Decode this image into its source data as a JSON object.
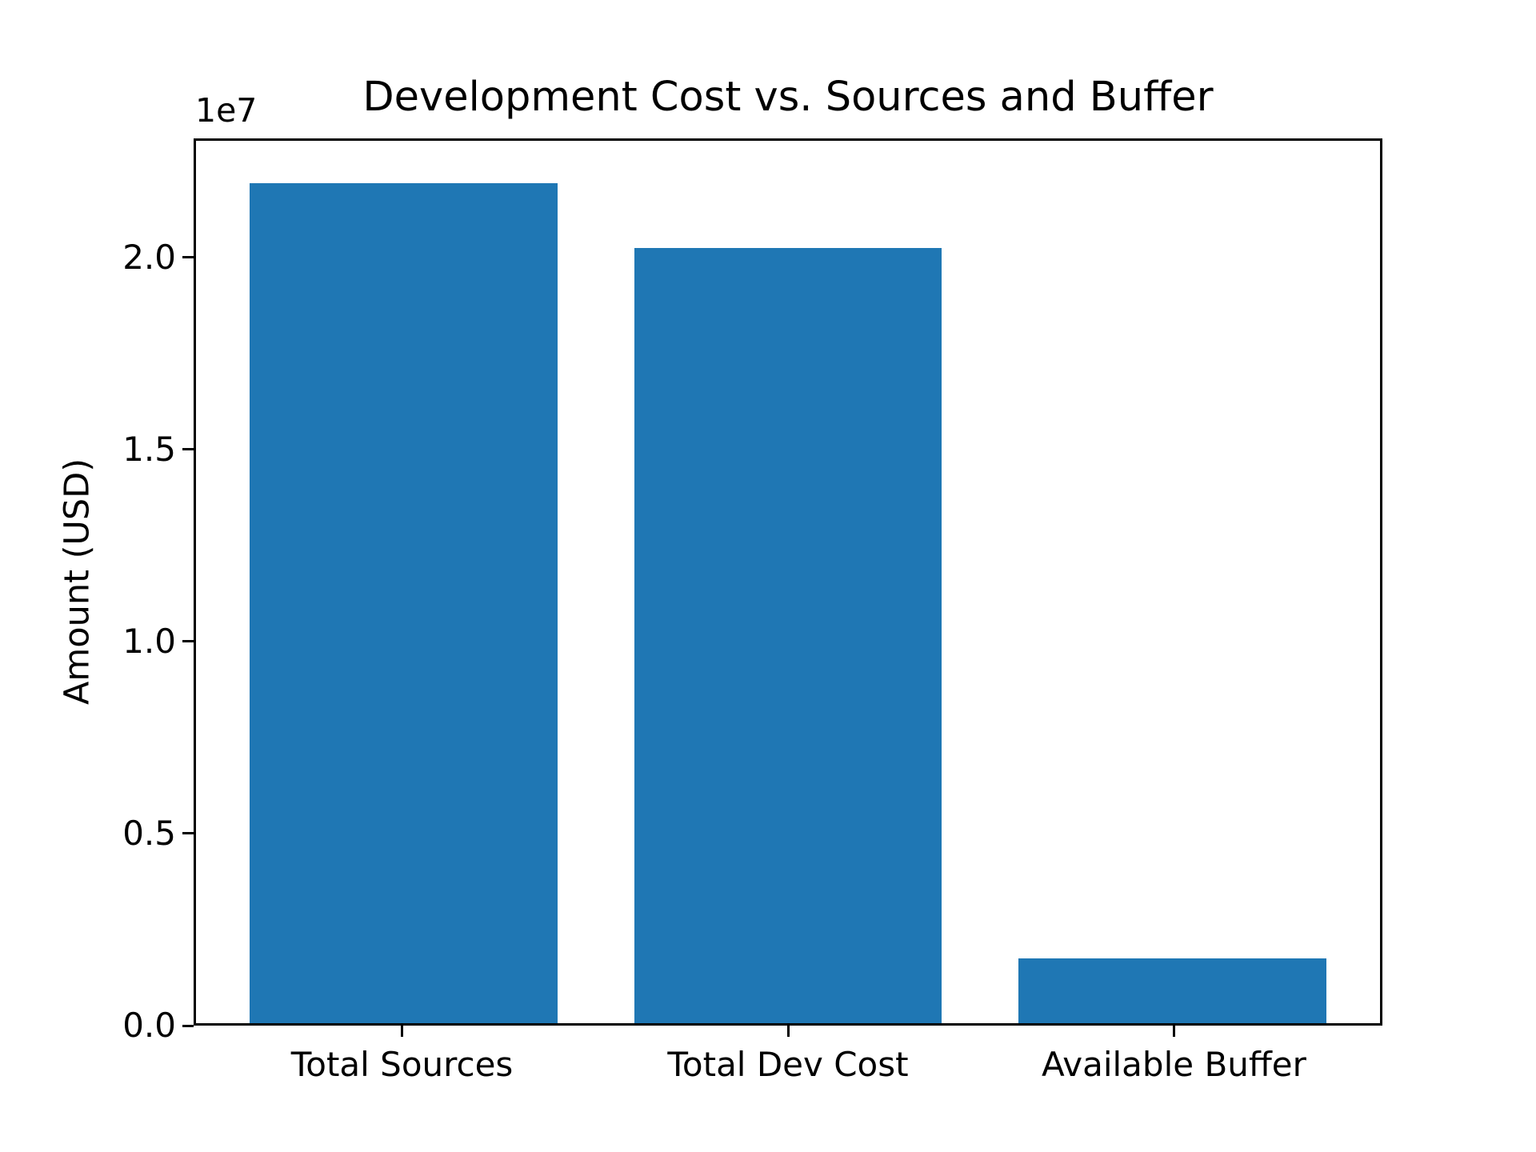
{
  "figure": {
    "title": "Development Cost vs. Sources and Buffer",
    "ylabel": "Amount (USD)",
    "offset_text": "1e7"
  },
  "chart_data": {
    "type": "bar",
    "title": "Development Cost vs. Sources and Buffer",
    "categories": [
      "Total Sources",
      "Total Dev Cost",
      "Available Buffer"
    ],
    "values": [
      22000000,
      20300000,
      1700000
    ],
    "xlabel": "",
    "ylabel": "Amount (USD)",
    "ylim": [
      0,
      23100000
    ],
    "yticks": [
      0,
      5000000,
      10000000,
      15000000,
      20000000
    ],
    "ytick_labels": [
      "0.0",
      "0.5",
      "1.0",
      "1.5",
      "2.0"
    ],
    "y_offset_label": "1e7",
    "bar_color": "#1f77b4",
    "bar_width_fraction": 0.8,
    "grid": false,
    "legend_position": "none"
  }
}
